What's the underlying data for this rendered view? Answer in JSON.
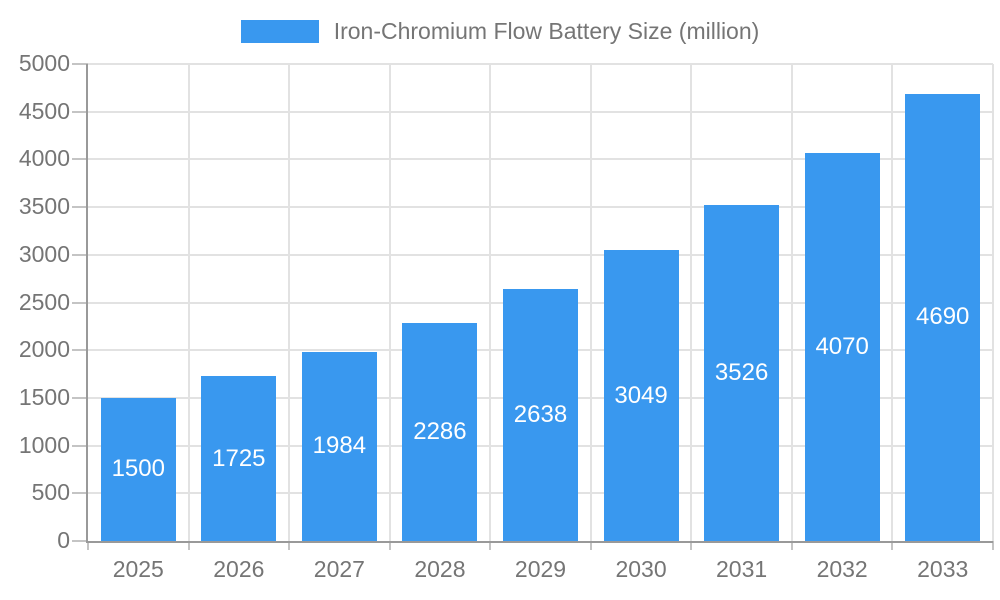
{
  "legend": {
    "series_label": "Iron-Chromium Flow Battery Size (million)"
  },
  "chart_data": {
    "type": "bar",
    "title": "Iron-Chromium Flow Battery Size (million)",
    "series_name": "Iron-Chromium Flow Battery Size (million)",
    "categories": [
      "2025",
      "2026",
      "2027",
      "2028",
      "2029",
      "2030",
      "2031",
      "2032",
      "2033"
    ],
    "values": [
      1500,
      1725,
      1984,
      2286,
      2638,
      3049,
      3526,
      4070,
      4690
    ],
    "xlabel": "",
    "ylabel": "",
    "ylim": [
      0,
      5000
    ],
    "ytick_step": 500,
    "grid": true,
    "legend_position": "top",
    "value_labels": "inside-center",
    "colors": {
      "bar": "#3998ef",
      "value_label": "#ffffff",
      "axis_label": "#757575",
      "grid_line": "#e2e2e2",
      "axis_line": "#999999",
      "tick": "#c4c4c4",
      "background": "#ffffff"
    }
  }
}
